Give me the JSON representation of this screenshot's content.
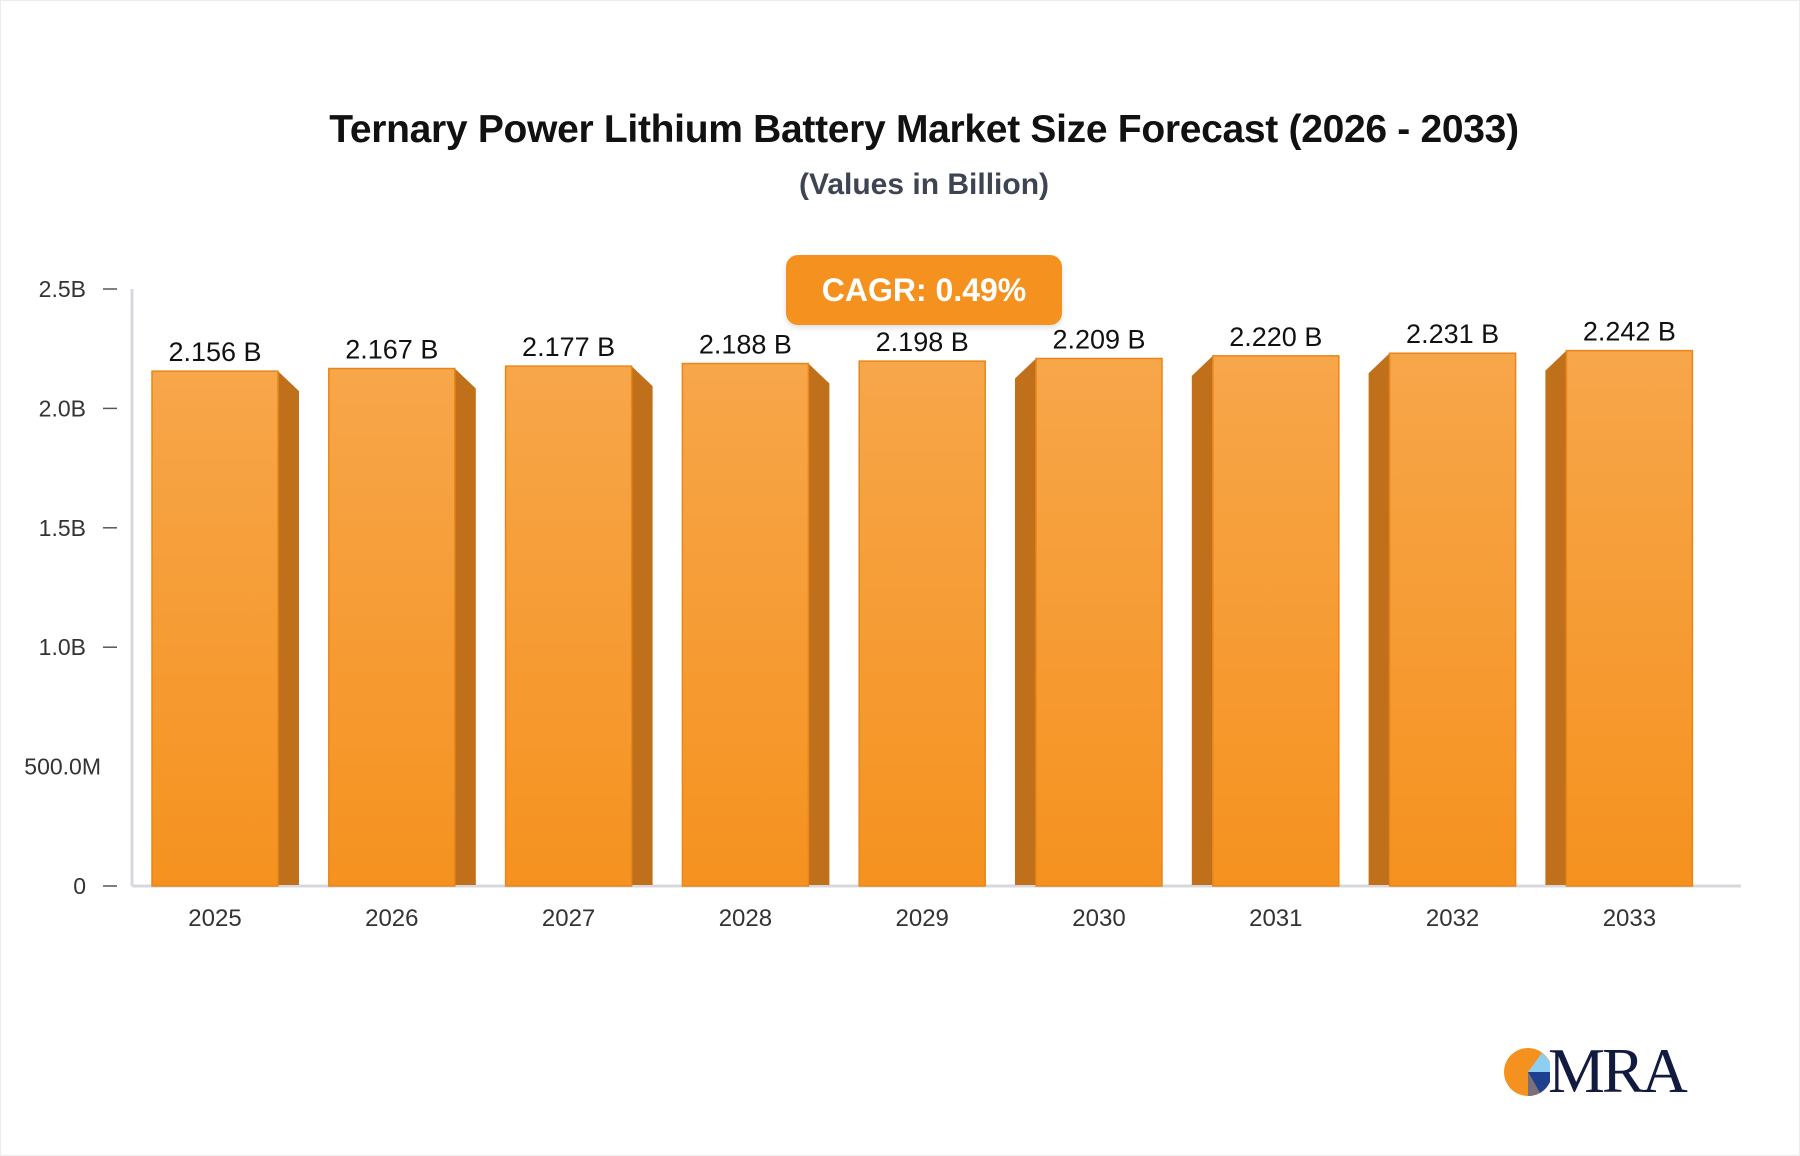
{
  "chart_data": {
    "type": "bar",
    "title": "Ternary Power Lithium Battery Market Size Forecast (2026 - 2033)",
    "subtitle": "(Values in Billion)",
    "categories": [
      "2025",
      "2026",
      "2027",
      "2028",
      "2029",
      "2030",
      "2031",
      "2032",
      "2033"
    ],
    "values": [
      2.156,
      2.167,
      2.177,
      2.188,
      2.198,
      2.209,
      2.22,
      2.231,
      2.242
    ],
    "data_labels": [
      "2.156 B",
      "2.167 B",
      "2.177 B",
      "2.188 B",
      "2.198 B",
      "2.209 B",
      "2.220 B",
      "2.231 B",
      "2.242 B"
    ],
    "unit": "Billion",
    "ylim": [
      0,
      2.5
    ],
    "yticks": [
      0,
      0.5,
      1.0,
      1.5,
      2.0,
      2.5
    ],
    "ytick_labels": [
      "0",
      "500.0M",
      "1.0B",
      "1.5B",
      "2.0B",
      "2.5B"
    ],
    "grid": false,
    "bar_color": "#f5921f",
    "bar_side_color": "#c0701b",
    "annotation": "CAGR: 0.49%"
  },
  "logo": {
    "text": "MRA",
    "colors": [
      "#f5921f",
      "#8ecff0",
      "#1f3f8f",
      "#7b6f7a"
    ]
  }
}
